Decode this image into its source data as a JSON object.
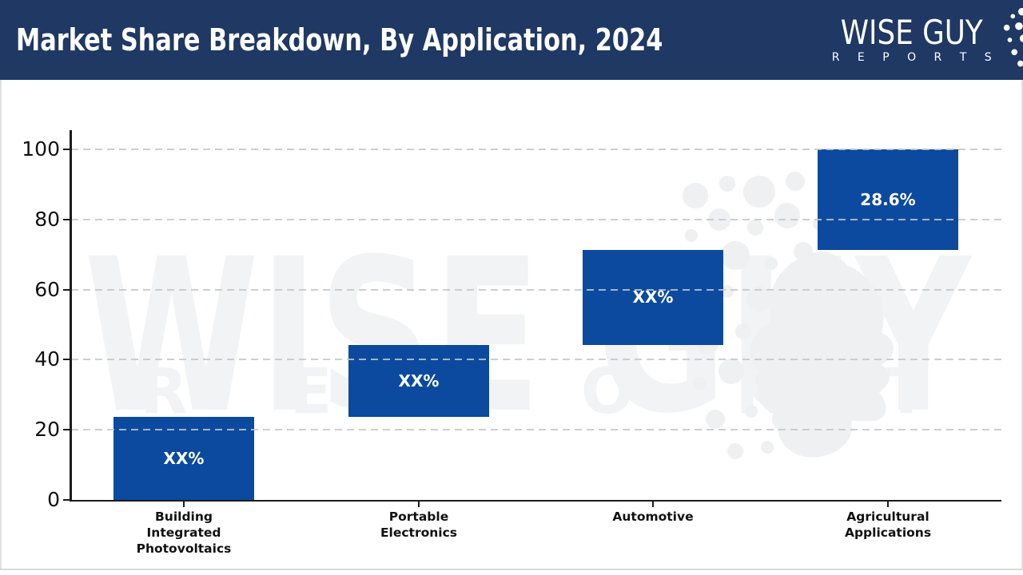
{
  "header": {
    "title": "Market Share Breakdown, By Application, 2024",
    "bg_color": "#1f3864",
    "logo": {
      "primary": "WISE GUY",
      "secondary": "R E P O R T S"
    }
  },
  "watermark": {
    "primary": "WISE GUY",
    "secondary": "R E P O R T S"
  },
  "chart_data": {
    "type": "bar",
    "subtype": "waterfall",
    "title": "Market Share Breakdown, By Application, 2024",
    "xlabel": "",
    "ylabel": "",
    "ylim": [
      0,
      105
    ],
    "yticks": [
      0,
      20,
      40,
      60,
      80,
      100
    ],
    "grid": true,
    "grid_style": "dashed",
    "legend": "none",
    "bar_color": "#0b4a9e",
    "bar_label_color": "#ffffff",
    "categories": [
      "Building\nIntegrated\nPhotovoltaics",
      "Portable\nElectronics",
      "Automotive",
      "Agricultural\nApplications"
    ],
    "segments": [
      {
        "category": "Building Integrated Photovoltaics",
        "start": 0,
        "end": 23.6,
        "value": 23.6,
        "label": "XX%"
      },
      {
        "category": "Portable Electronics",
        "start": 23.6,
        "end": 44.3,
        "value": 20.7,
        "label": "XX%"
      },
      {
        "category": "Automotive",
        "start": 44.3,
        "end": 71.4,
        "value": 27.1,
        "label": "XX%"
      },
      {
        "category": "Agricultural Applications",
        "start": 71.4,
        "end": 100.0,
        "value": 28.6,
        "label": "28.6%"
      }
    ]
  }
}
